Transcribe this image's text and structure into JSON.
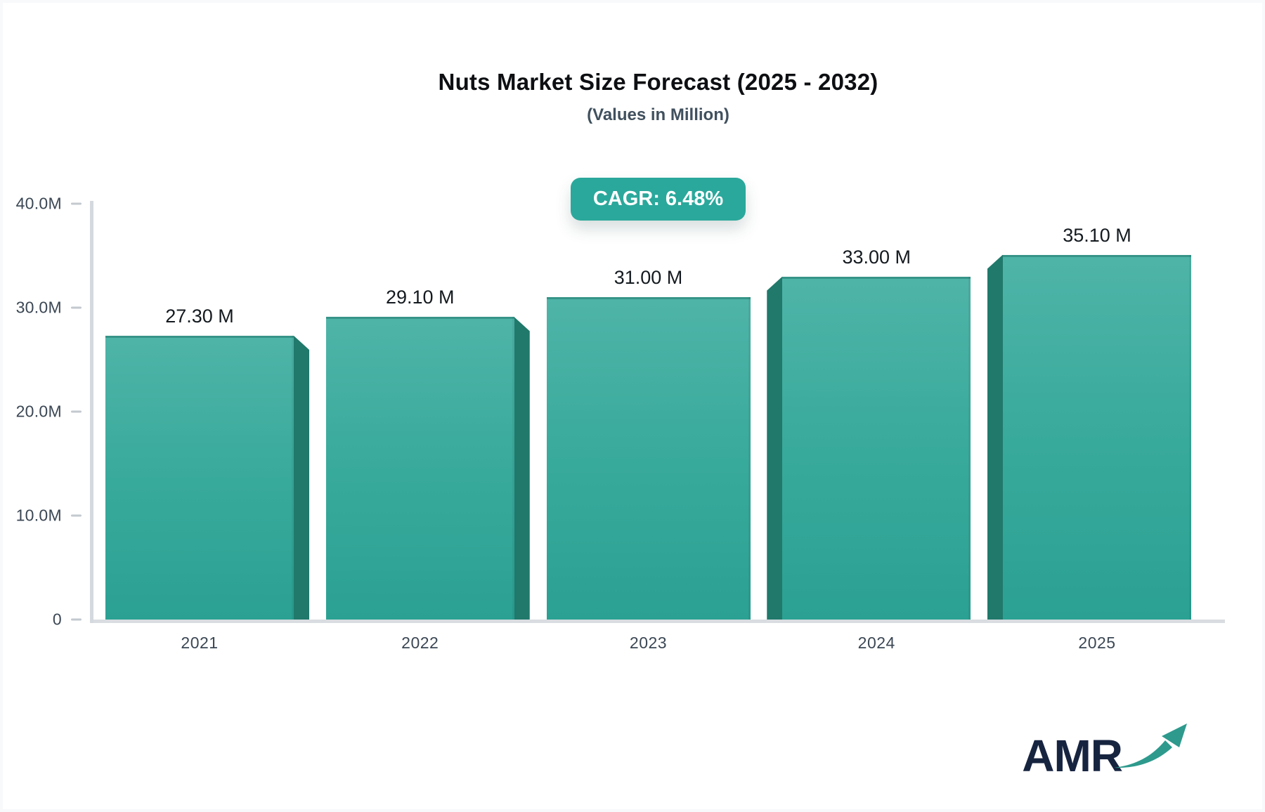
{
  "header": {
    "title": "Nuts Market Size Forecast (2025 - 2032)",
    "subtitle": "(Values in Million)",
    "cagr_badge": "CAGR: 6.48%"
  },
  "logo": {
    "text": "AMR",
    "text_color": "#172440",
    "arrow_color": "#2d9a8d"
  },
  "chart_data": {
    "type": "bar",
    "title": "Nuts Market Size Forecast (2025 - 2032)",
    "subtitle": "(Values in Million)",
    "annotation": "CAGR: 6.48%",
    "categories": [
      "2021",
      "2022",
      "2023",
      "2024",
      "2025"
    ],
    "values": [
      27.3,
      29.1,
      31.0,
      33.0,
      35.1
    ],
    "value_labels": [
      "27.30 M",
      "29.10 M",
      "31.00 M",
      "33.00 M",
      "35.10 M"
    ],
    "unit": "Million",
    "ylim": [
      0,
      40
    ],
    "yticks": [
      "40.0M",
      "30.0M",
      "20.0M",
      "10.0M",
      "0"
    ],
    "grid": "off",
    "legend": "none",
    "bar_sides": [
      "right",
      "right",
      "none",
      "left",
      "left"
    ],
    "colors": {
      "bar_face_top": "#4fb4a8",
      "bar_face_bottom": "#2ba193",
      "bar_side_3d": "#20796b",
      "badge_bg": "#2aa89b",
      "badge_text": "#ffffff",
      "axis_line": "#d4d8df",
      "tick_label": "#3b4754",
      "value_label": "#141a1f"
    }
  }
}
